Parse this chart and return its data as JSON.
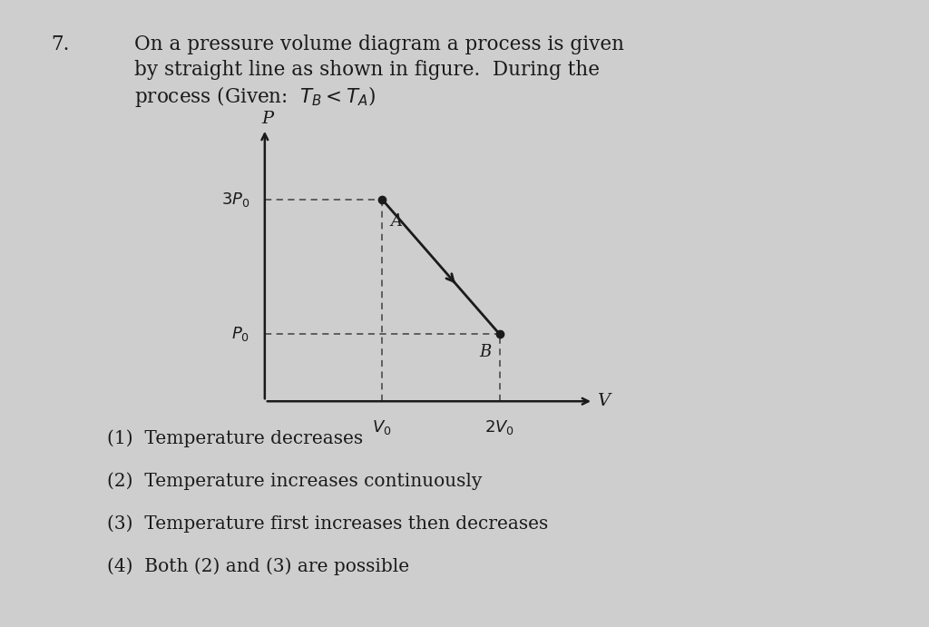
{
  "background_color": "#cecece",
  "fig_width": 10.24,
  "fig_height": 6.91,
  "question_number": "7.",
  "question_lines": [
    "On a pressure volume diagram a process is given",
    "by straight line as shown in figure.  During the",
    "process (Given:  $T_B < T_A$)"
  ],
  "point_A": [
    1,
    3
  ],
  "point_B": [
    2,
    1
  ],
  "x_axis_label": "V",
  "y_axis_label": "P",
  "options": [
    "(1)  Temperature decreases",
    "(2)  Temperature increases continuously",
    "(3)  Temperature first increases then decreases",
    "(4)  Both (2) and (3) are possible"
  ],
  "line_color": "#1a1a1a",
  "dot_color": "#1a1a1a",
  "dashed_color": "#555555",
  "text_color": "#1a1a1a",
  "axis_color": "#1a1a1a",
  "question_fontsize": 15.5,
  "label_fontsize": 14,
  "tick_label_fontsize": 13,
  "options_fontsize": 14.5,
  "point_label_fontsize": 13
}
